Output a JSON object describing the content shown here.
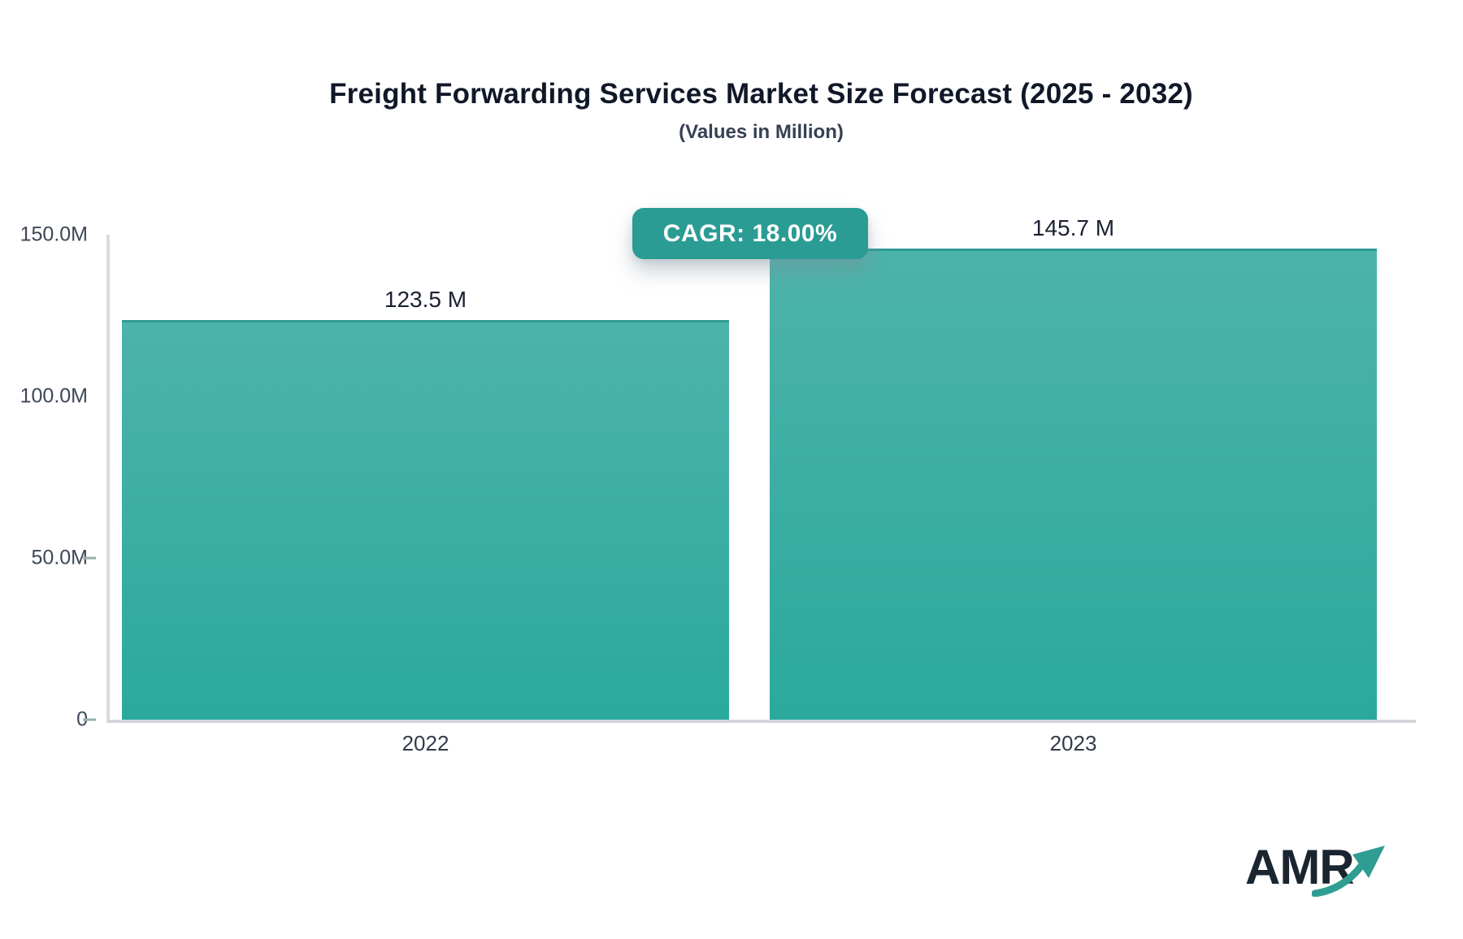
{
  "title": {
    "text": "Freight Forwarding Services Market Size Forecast (2025 - 2032)",
    "subtitle": "(Values in Million)"
  },
  "cagr": {
    "label": "CAGR: 18.00%"
  },
  "chart_data": {
    "type": "bar",
    "title": "Freight Forwarding Services Market Size Forecast (2025 - 2032)",
    "subtitle": "(Values in Million)",
    "categories": [
      "2022",
      "2023"
    ],
    "values": [
      123.5,
      145.7
    ],
    "value_labels": [
      "123.5 M",
      "145.7 M"
    ],
    "unit": "Million",
    "xlabel": "",
    "ylabel": "",
    "ylim": [
      0,
      150
    ],
    "yticks": [
      {
        "value": 0,
        "label": "0",
        "tick": true
      },
      {
        "value": 50,
        "label": "50.0M",
        "tick": true
      },
      {
        "value": 100,
        "label": "100.0M",
        "tick": false
      },
      {
        "value": 150,
        "label": "150.0M",
        "tick": false
      }
    ],
    "grid": false,
    "legend": "none",
    "annotations": [
      {
        "type": "badge",
        "text": "CAGR: 18.00%"
      }
    ]
  },
  "colors": {
    "bar_top": "#4db3aa",
    "bar_bottom": "#2ba99d",
    "bar_border": "#2e9c92",
    "badge_bg": "#2a9c94",
    "badge_text": "#ffffff",
    "axis_line": "#d8dbde",
    "tick_dash": "#97b2ae",
    "arrow": "#2f9d92"
  },
  "logo": {
    "text": "AMR"
  }
}
